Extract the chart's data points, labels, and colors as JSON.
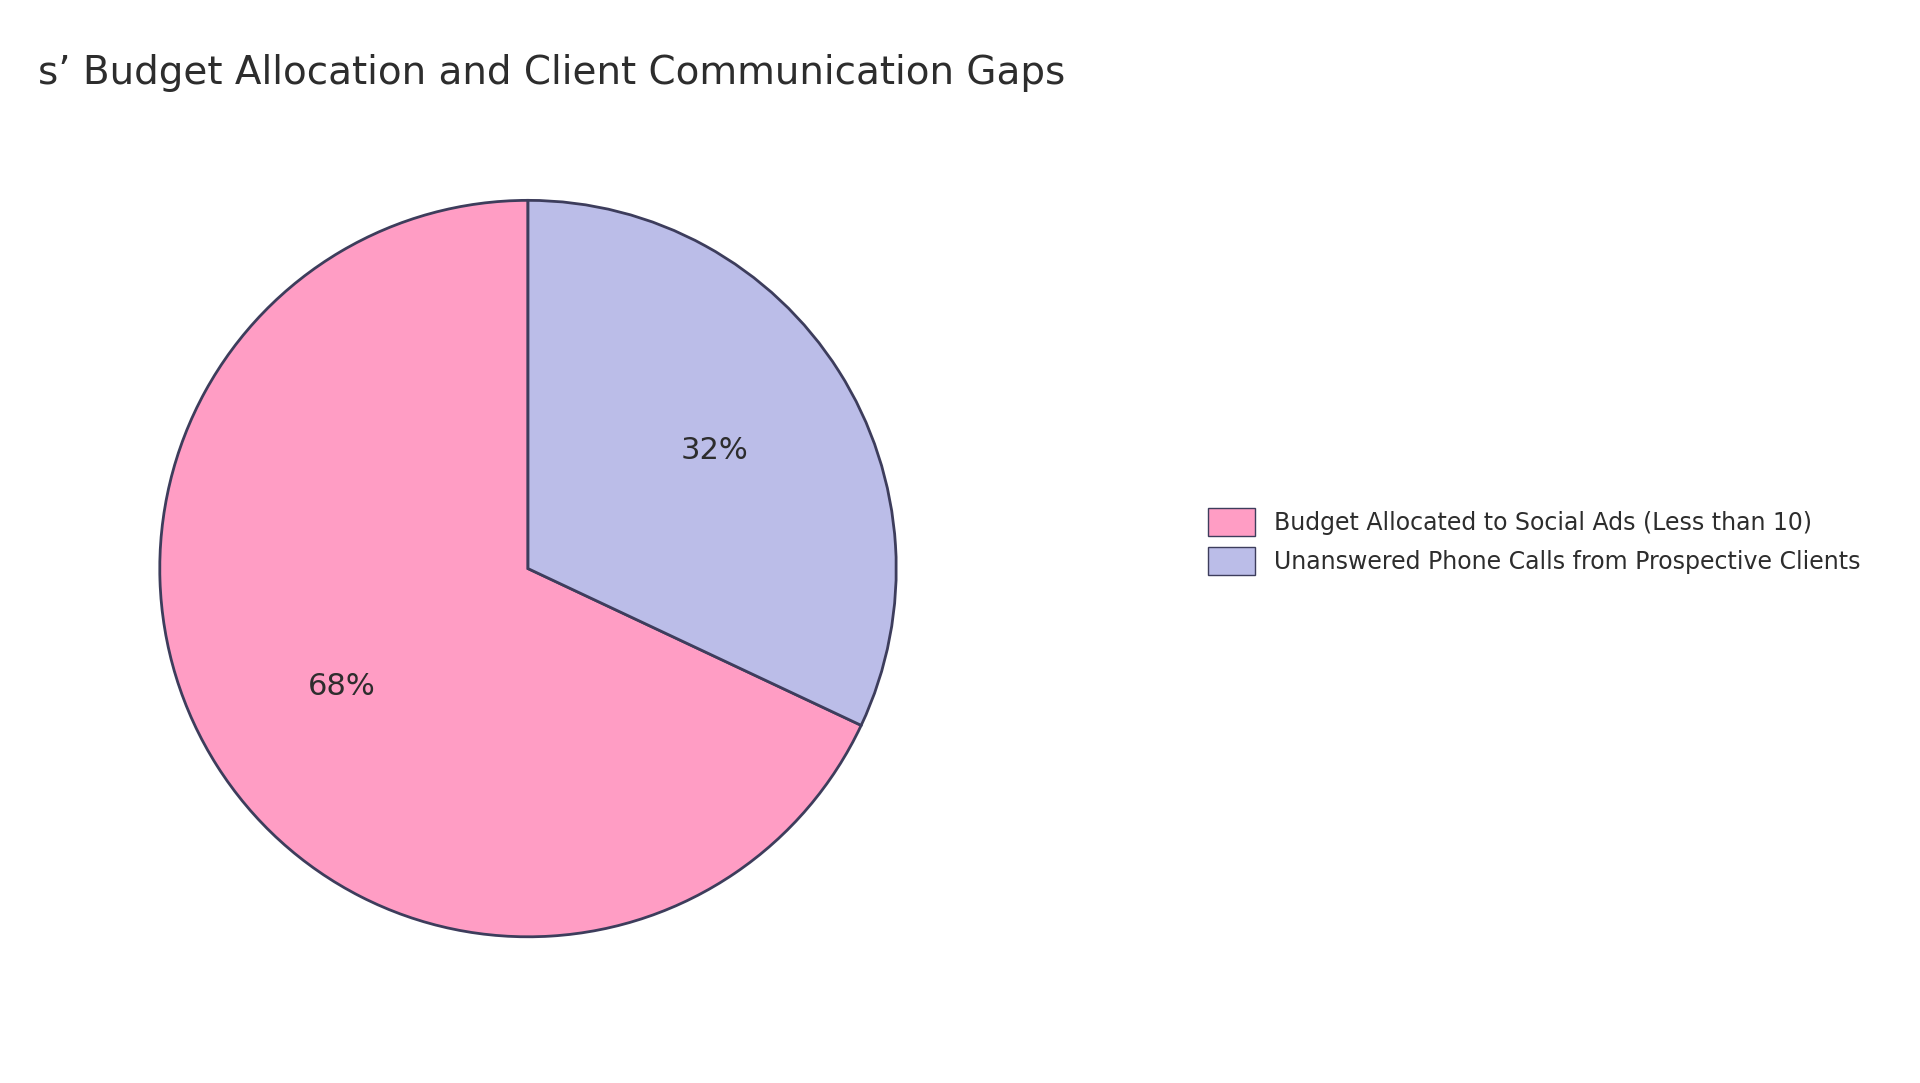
{
  "title": "s’ Budget Allocation and Client Communication Gaps",
  "slices": [
    68,
    32
  ],
  "labels": [
    "Budget Allocated to Social Ads (Less than 10)",
    "Unanswered Phone Calls from Prospective Clients"
  ],
  "colors": [
    "#FF9DC4",
    "#BBBDE8"
  ],
  "edge_color": "#3D3D5C",
  "edge_width": 2.0,
  "pct_labels": [
    "68%",
    "32%"
  ],
  "pct_fontsize": 22,
  "title_fontsize": 28,
  "title_color": "#2d2d2d",
  "legend_fontsize": 17,
  "background_color": "#ffffff",
  "startangle": 90
}
